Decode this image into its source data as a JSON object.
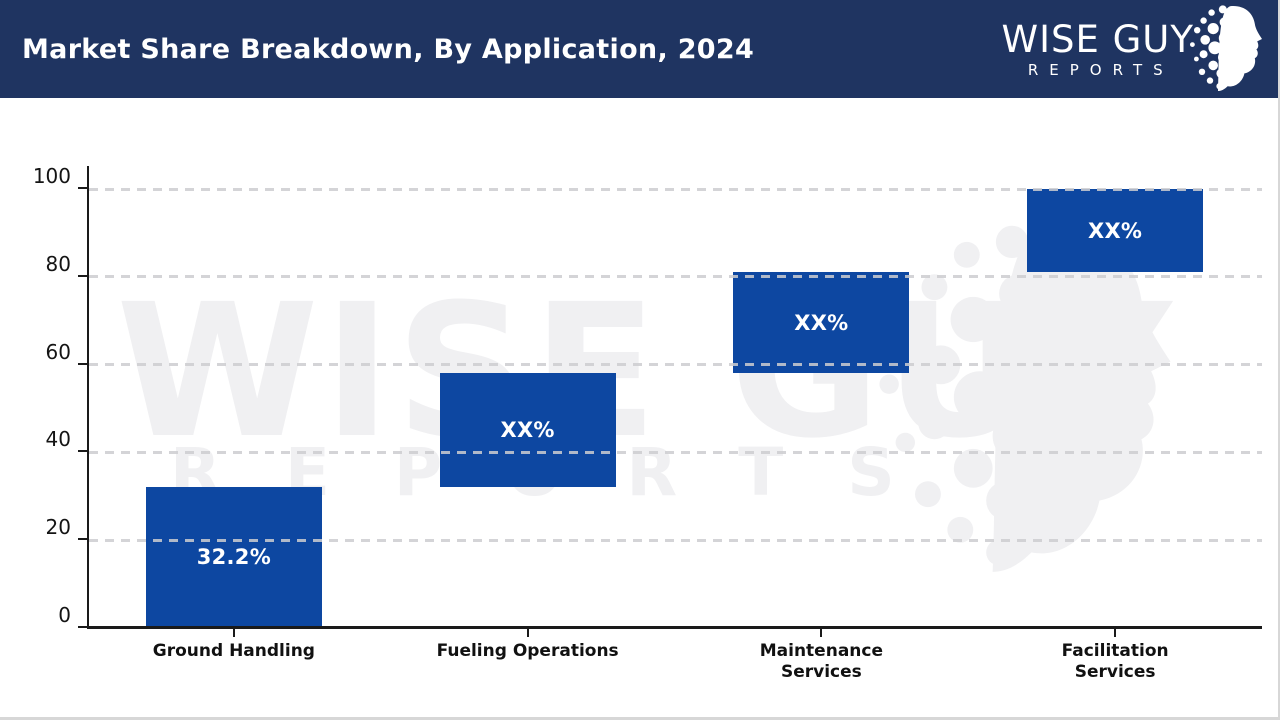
{
  "header": {
    "title": "Market Share Breakdown, By Application, 2024",
    "logo": {
      "line1": "WISE GUY",
      "line2": "REPORTS"
    }
  },
  "watermark": {
    "line1": "WISE GUY",
    "line2": "REPORTS"
  },
  "chart_data": {
    "type": "bar",
    "subtype": "waterfall-breakdown",
    "title": "Market Share Breakdown, By Application, 2024",
    "categories": [
      "Ground Handling",
      "Fueling Operations",
      "Maintenance\nServices",
      "Facilitation\nServices"
    ],
    "segments": [
      {
        "category": "Ground Handling",
        "start": 0,
        "end": 32.2,
        "label": "32.2%"
      },
      {
        "category": "Fueling Operations",
        "start": 32.2,
        "end": 58,
        "label": "XX%"
      },
      {
        "category": "Maintenance Services",
        "start": 58,
        "end": 81,
        "label": "XX%"
      },
      {
        "category": "Facilitation Services",
        "start": 81,
        "end": 100,
        "label": "XX%"
      }
    ],
    "xlabel": "",
    "ylabel": "",
    "ylim": [
      0,
      100
    ],
    "yticks": [
      0,
      20,
      40,
      60,
      80,
      100
    ],
    "grid": "dashed-horizontal",
    "legend": "none",
    "colors": {
      "bar": "#0d47a1",
      "bar_label_text": "#ffffff",
      "header_bg": "#1f3461",
      "grid_line": "#d0d0d3",
      "axis": "#1a1a1a",
      "watermark": "#f0f0f2"
    }
  }
}
